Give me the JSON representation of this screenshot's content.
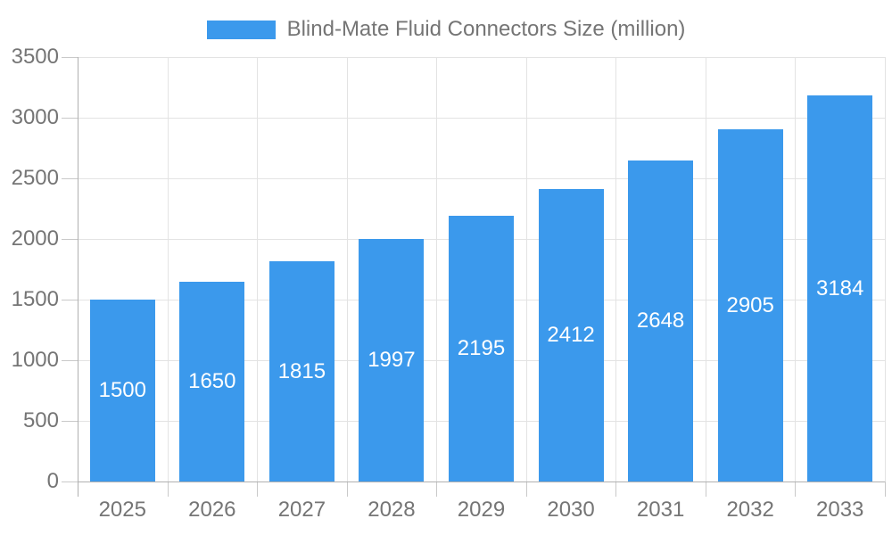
{
  "chart_data": {
    "type": "bar",
    "title": "Blind-Mate Fluid Connectors Size (million)",
    "legend": {
      "label": "Blind-Mate Fluid Connectors Size (million)",
      "position": "top-center"
    },
    "categories": [
      "2025",
      "2026",
      "2027",
      "2028",
      "2029",
      "2030",
      "2031",
      "2032",
      "2033"
    ],
    "series": [
      {
        "name": "Blind-Mate Fluid Connectors Size (million)",
        "values": [
          1500,
          1650,
          1815,
          1997,
          2195,
          2412,
          2648,
          2905,
          3184
        ]
      }
    ],
    "value_labels": [
      "1500",
      "1650",
      "1815",
      "1997",
      "2195",
      "2412",
      "2648",
      "2905",
      "3184"
    ],
    "xlabel": "",
    "ylabel": "",
    "ylim": [
      0,
      3500
    ],
    "y_ticks": [
      0,
      500,
      1000,
      1500,
      2000,
      2500,
      3000,
      3500
    ],
    "grid": "on",
    "colors": {
      "bar": "#3B99EC",
      "grid_line": "#E3E3E3",
      "axis_line": "#B0B0B0",
      "tick_line": "#C9C9C9",
      "axis_text": "#757575",
      "value_label_text": "#FFFFFF",
      "background": "#FFFFFF"
    }
  }
}
